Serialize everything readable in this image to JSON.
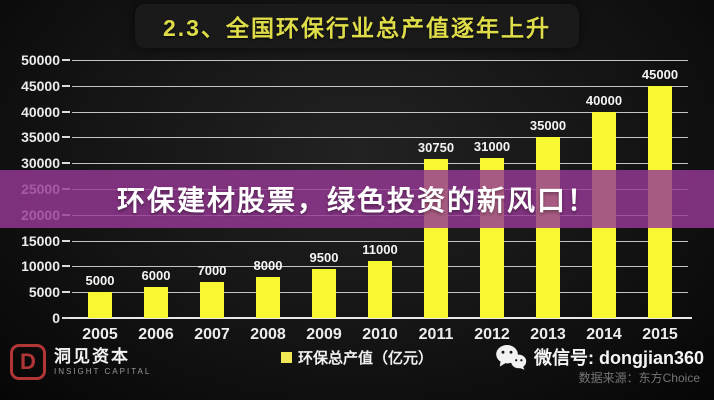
{
  "title": "2.3、全国环保行业总产值逐年上升",
  "overlay_banner": {
    "text": "环保建材股票，绿色投资的新风口！",
    "color": "#96388f",
    "text_color": "#ffffff"
  },
  "chart_data": {
    "type": "bar",
    "categories": [
      "2005",
      "2006",
      "2007",
      "2008",
      "2009",
      "2010",
      "2011",
      "2012",
      "2013",
      "2014",
      "2015"
    ],
    "values": [
      5000,
      6000,
      7000,
      8000,
      9500,
      11000,
      30750,
      31000,
      35000,
      40000,
      45000
    ],
    "title": "2.3、全国环保行业总产值逐年上升",
    "xlabel": "",
    "ylabel": "",
    "ylim": [
      0,
      50000
    ],
    "ytick_step": 5000,
    "grid": true,
    "legend": "环保总产值（亿元）",
    "legend_position": "bottom",
    "bar_color": "#f8f832",
    "value_labels_shown": true
  },
  "footer": {
    "logo": {
      "letter": "D",
      "name_cn": "洞见资本",
      "name_en": "INSIGHT CAPITAL",
      "brand_color": "#b23636"
    },
    "wechat": {
      "label": "微信号: dongjian360"
    },
    "source_watermark": "数据来源：东方Choice"
  }
}
